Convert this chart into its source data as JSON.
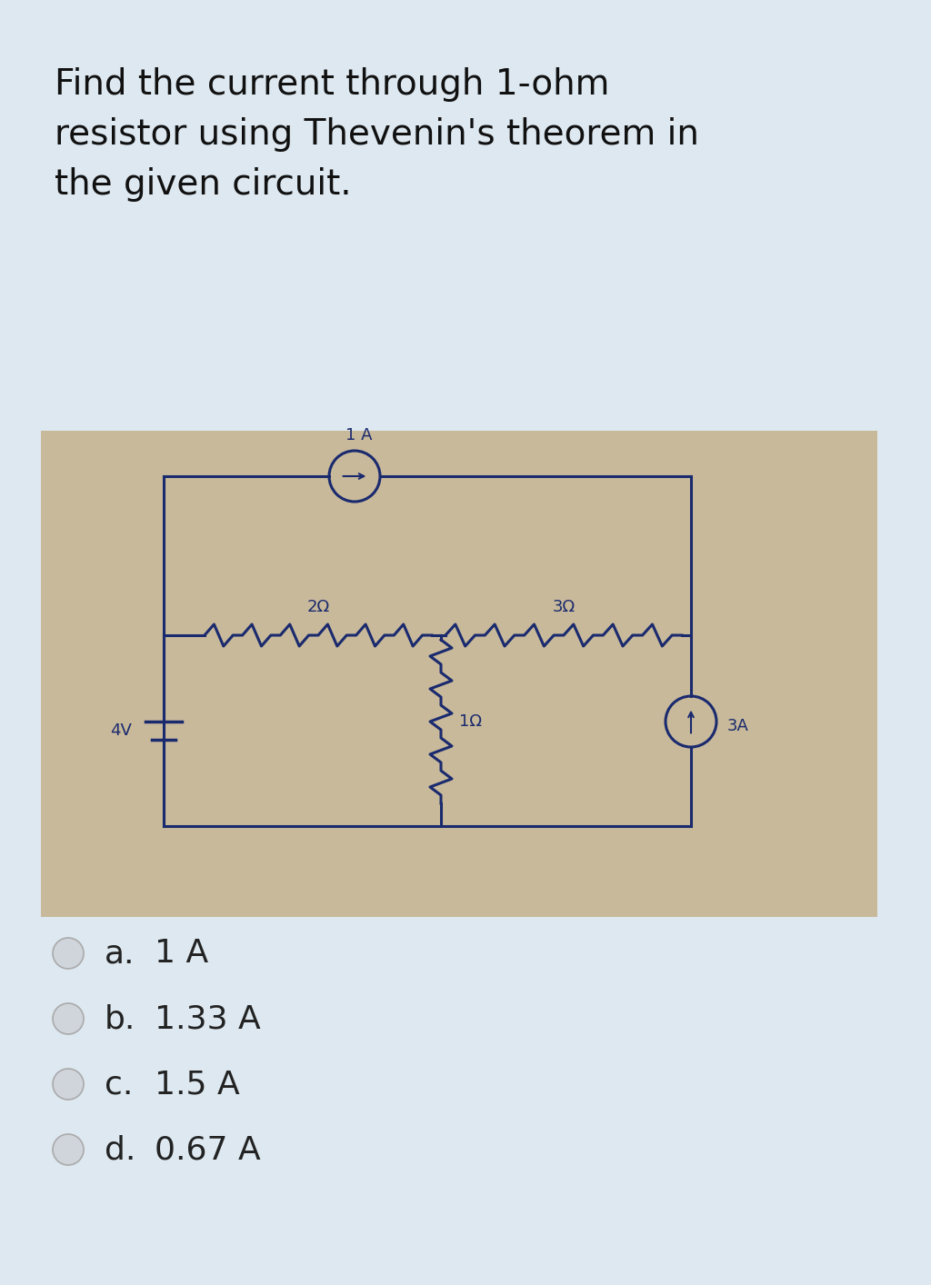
{
  "title": "Find the current through 1-ohm\nresistor using Thevenin's theorem in\nthe given circuit.",
  "bg_color": "#dde8f0",
  "photo_bg": "#c8b99a",
  "circuit_color": "#1a2a6e",
  "options": [
    {
      "label": "a.",
      "value": "1 A"
    },
    {
      "label": "b.",
      "value": "1.33 A"
    },
    {
      "label": "c.",
      "value": "1.5 A"
    },
    {
      "label": "d.",
      "value": "0.67 A"
    }
  ],
  "title_fontsize": 28,
  "option_fontsize": 26
}
